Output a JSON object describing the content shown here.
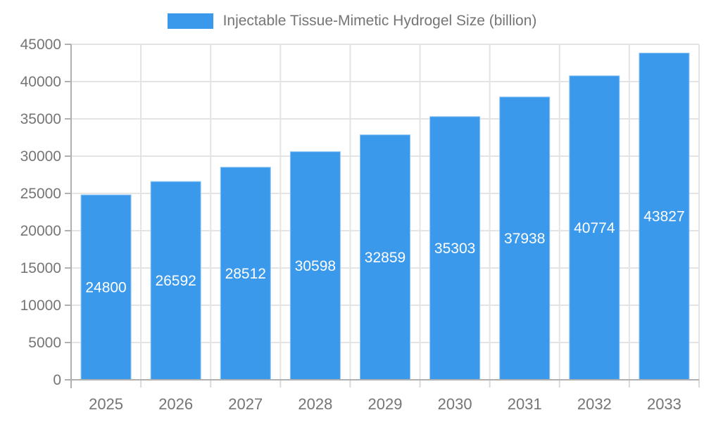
{
  "legend": {
    "label": "Injectable Tissue-Mimetic Hydrogel Size (billion)"
  },
  "chart_data": {
    "type": "bar",
    "title": "Injectable Tissue-Mimetic Hydrogel Size (billion)",
    "categories": [
      "2025",
      "2026",
      "2027",
      "2028",
      "2029",
      "2030",
      "2031",
      "2032",
      "2033"
    ],
    "values": [
      24800,
      26592,
      28512,
      30598,
      32859,
      35303,
      37938,
      40774,
      43827
    ],
    "xlabel": "",
    "ylabel": "",
    "ylim": [
      0,
      45000
    ],
    "ytick_step": 5000,
    "ytick_labels": [
      "0",
      "5000",
      "10000",
      "15000",
      "20000",
      "25000",
      "30000",
      "35000",
      "40000",
      "45000"
    ],
    "grid": true,
    "legend_position": "top",
    "value_labels_inside_bars": true,
    "colors": {
      "bar": "#3b99ec",
      "bar_edge": "#8ec6f5",
      "value_label": "#ffffff",
      "axis_text": "#757575",
      "axis_line": "#b0b0b0",
      "gridline": "#e4e4e4"
    }
  }
}
